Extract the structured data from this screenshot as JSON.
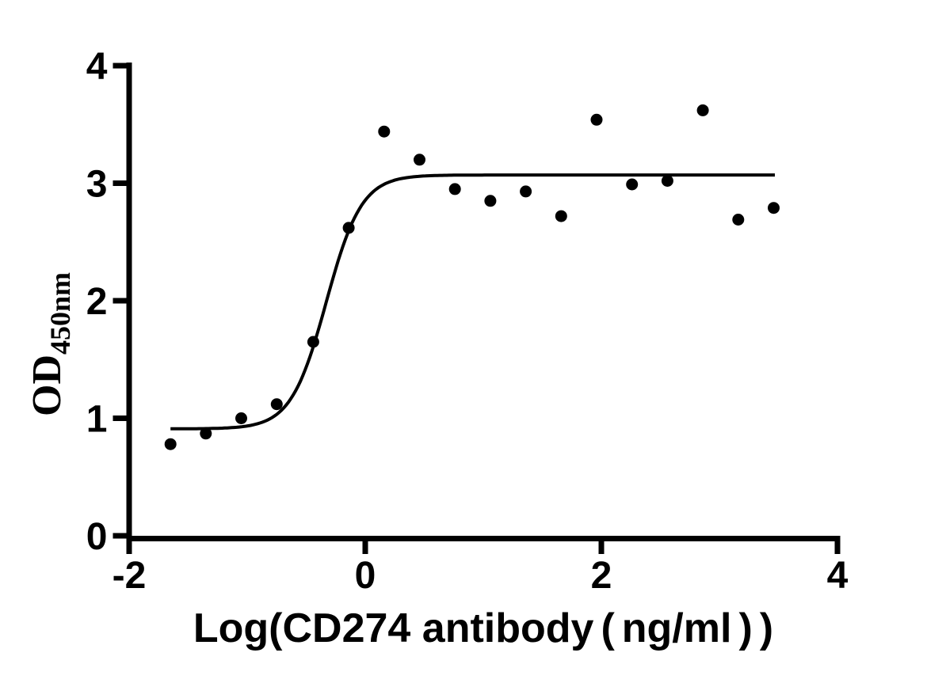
{
  "chart_data": {
    "type": "scatter",
    "title": "",
    "xlabel": "Log(CD274 antibody（ng/ml）)",
    "ylabel": "OD450nm",
    "ylabel_base": "OD",
    "ylabel_sub": "450nm",
    "xlim": [
      -2,
      4
    ],
    "ylim": [
      0,
      4
    ],
    "x_ticks": [
      -2,
      0,
      2,
      4
    ],
    "y_ticks": [
      0,
      1,
      2,
      3,
      4
    ],
    "grid": false,
    "legend": "none",
    "marker": {
      "shape": "circle",
      "color": "#000000"
    },
    "points": [
      [
        -1.65,
        0.78
      ],
      [
        -1.35,
        0.87
      ],
      [
        -1.05,
        1.0
      ],
      [
        -0.75,
        1.12
      ],
      [
        -0.44,
        1.65
      ],
      [
        -0.14,
        2.62
      ],
      [
        0.16,
        3.44
      ],
      [
        0.46,
        3.2
      ],
      [
        0.76,
        2.95
      ],
      [
        1.06,
        2.85
      ],
      [
        1.36,
        2.93
      ],
      [
        1.66,
        2.72
      ],
      [
        1.96,
        3.54
      ],
      [
        2.26,
        2.99
      ],
      [
        2.56,
        3.02
      ],
      [
        2.86,
        3.62
      ],
      [
        3.16,
        2.69
      ],
      [
        3.46,
        2.79
      ]
    ],
    "fit_curve": {
      "model": "sigmoidal-4PL",
      "bottom": 0.91,
      "top": 3.07,
      "log_ec50": -0.33,
      "hill_slope": 2.9,
      "x_start": -1.65,
      "x_end": 3.47,
      "color": "#000000"
    },
    "colors": {
      "foreground": "#000000",
      "background": "#ffffff"
    }
  }
}
